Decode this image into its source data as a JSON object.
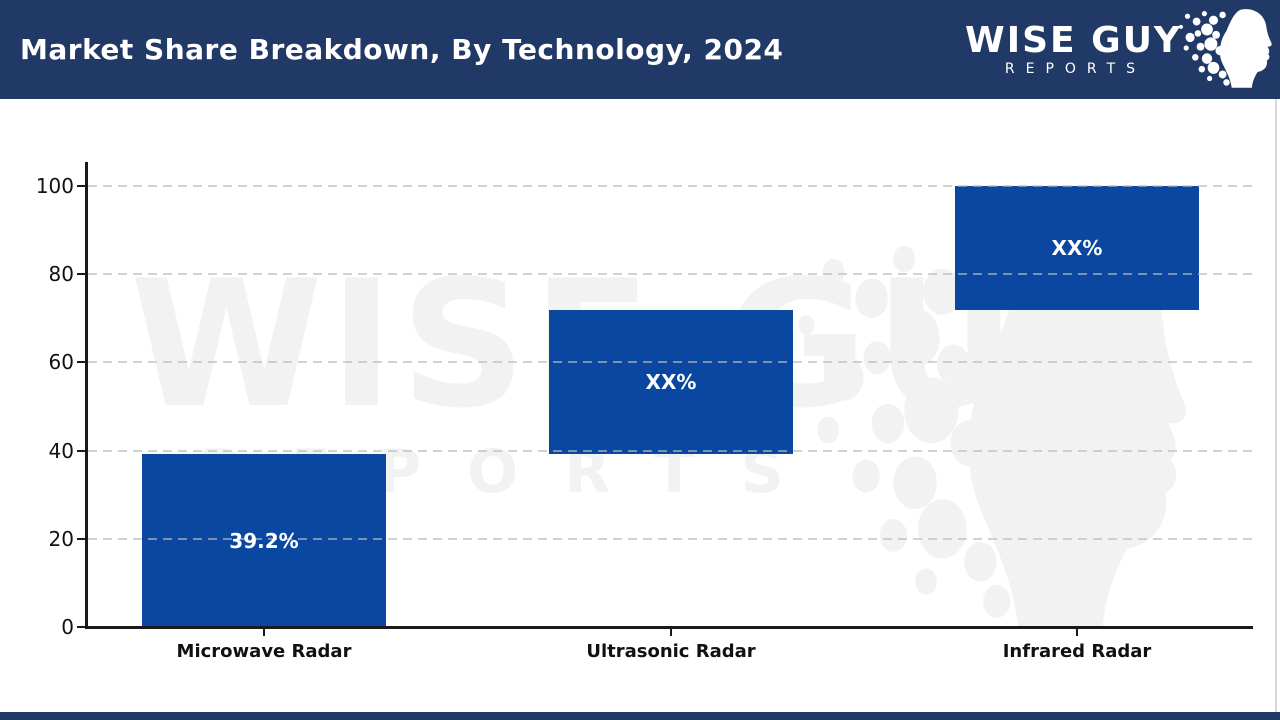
{
  "header": {
    "title": "Market Share Breakdown, By Technology, 2024"
  },
  "logo": {
    "name": "WISE GUY",
    "sub": "REPORTS"
  },
  "watermark": {
    "name": "WISE GUY",
    "sub": "REPORTS"
  },
  "chart_data": {
    "type": "bar",
    "subtype": "floating-waterfall",
    "title": "Market Share Breakdown, By Technology, 2024",
    "categories": [
      "Microwave Radar",
      "Ultrasonic Radar",
      "Infrared Radar"
    ],
    "segments": [
      {
        "category": "Microwave Radar",
        "start": 0,
        "end": 39.2,
        "label": "39.2%"
      },
      {
        "category": "Ultrasonic Radar",
        "start": 39.2,
        "end": 71.8,
        "label": "XX%"
      },
      {
        "category": "Infrared Radar",
        "start": 71.8,
        "end": 100,
        "label": "XX%"
      }
    ],
    "yticks": [
      0,
      20,
      40,
      60,
      80,
      100
    ],
    "ylim": [
      0,
      106
    ],
    "xlabel": "",
    "ylabel": "",
    "grid": {
      "horizontal": true,
      "style": "dashed"
    },
    "legend": "none",
    "colors": {
      "bar": "#0a47a0",
      "bar_label": "#ffffff",
      "axis": "#1a1a1a",
      "grid_line": "#d9d9d9",
      "header_footer": "#213966",
      "watermark": "#f2f2f3"
    }
  }
}
